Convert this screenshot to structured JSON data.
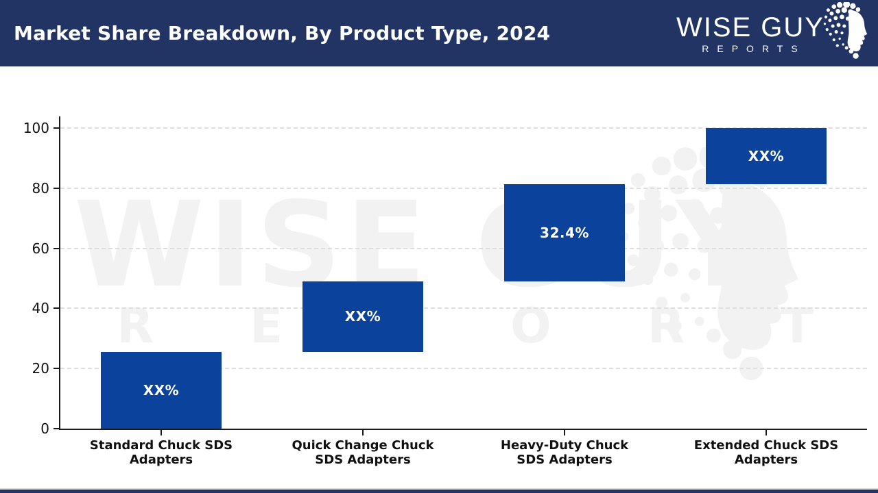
{
  "header": {
    "title": "Market Share Breakdown, By Product Type, 2024",
    "bg_color": "#223464",
    "logo": {
      "line1": "WISE GUY",
      "line2": "REPORTS"
    }
  },
  "watermark": {
    "line1": "WISE GUY",
    "line2": "R E P O R T S",
    "color": "#f2f2f3"
  },
  "footer": {
    "bar_color": "#223464"
  },
  "chart_data": {
    "type": "bar",
    "subtype": "waterfall-floating-bars",
    "title": "Market Share Breakdown, By Product Type, 2024",
    "categories": [
      "Standard Chuck SDS Adapters",
      "Quick Change Chuck SDS Adapters",
      "Heavy-Duty Chuck SDS Adapters",
      "Extended Chuck SDS Adapters"
    ],
    "category_lines": [
      [
        "Standard Chuck SDS",
        "Adapters"
      ],
      [
        "Quick Change Chuck",
        "SDS Adapters"
      ],
      [
        "Heavy-Duty Chuck",
        "SDS Adapters"
      ],
      [
        "Extended Chuck SDS",
        "Adapters"
      ]
    ],
    "segments": [
      [
        0,
        25.5
      ],
      [
        25.5,
        49.0
      ],
      [
        49.0,
        81.4
      ],
      [
        81.4,
        100
      ]
    ],
    "values": [
      25.5,
      23.5,
      32.4,
      18.6
    ],
    "labels": [
      "XX%",
      "XX%",
      "32.4%",
      "XX%"
    ],
    "bar_color": "#0a429c",
    "xlabel": "",
    "ylabel": "",
    "ylim": [
      0,
      100
    ],
    "yticks": [
      0,
      20,
      40,
      60,
      80,
      100
    ],
    "grid": "horizontal-dashed",
    "grid_color": "#dedede",
    "legend": "none"
  }
}
